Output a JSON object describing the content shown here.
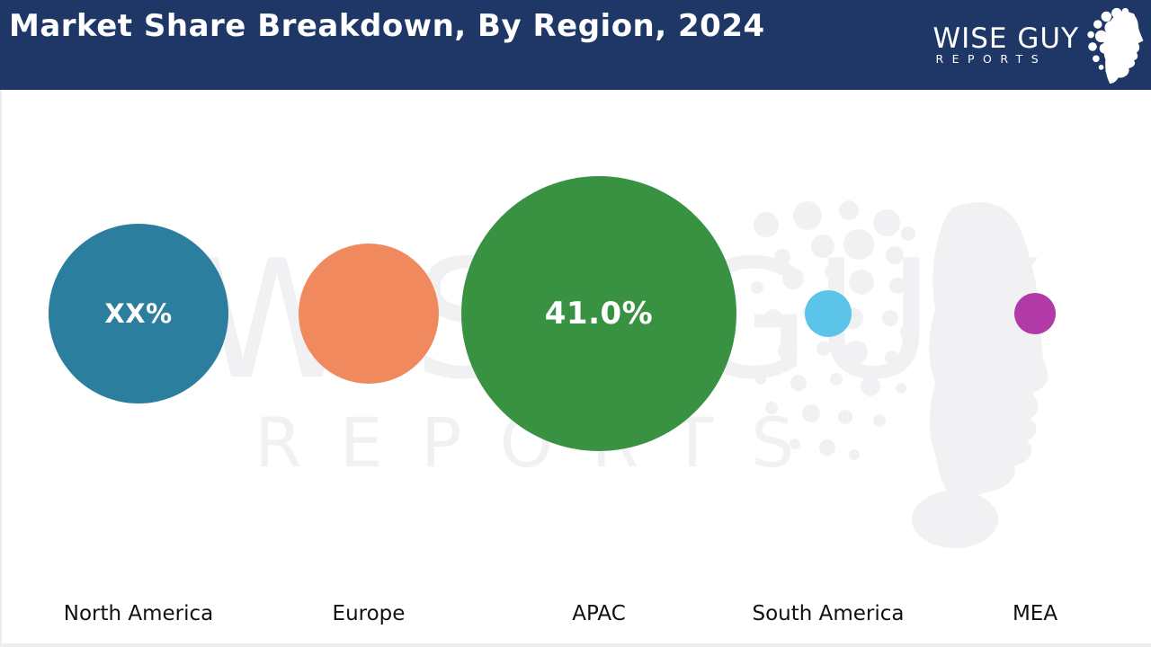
{
  "header": {
    "title": "Market Share Breakdown, By Region, 2024",
    "logo": {
      "line1": "WISE GUY",
      "line2": "REPORTS"
    }
  },
  "watermark": {
    "line1": "WISE GUY",
    "line2": "REPORTS"
  },
  "colors": {
    "header_bg": "#1f3766",
    "watermark": "#f1f1f4",
    "label_text": "#111111"
  },
  "chart_data": {
    "type": "bubble",
    "title": "Market Share Breakdown, By Region, 2024",
    "categories": [
      "North America",
      "Europe",
      "APAC",
      "South America",
      "MEA"
    ],
    "points": [
      {
        "category": "North America",
        "value_label": "XX%",
        "share_pct": null,
        "color": "#2b7e9e",
        "radius_px": 100
      },
      {
        "category": "Europe",
        "value_label": "",
        "share_pct": null,
        "color": "#f08a5e",
        "radius_px": 78
      },
      {
        "category": "APAC",
        "value_label": "41.0%",
        "share_pct": 41.0,
        "color": "#389242",
        "radius_px": 153
      },
      {
        "category": "South America",
        "value_label": "",
        "share_pct": null,
        "color": "#5bc4e8",
        "radius_px": 26
      },
      {
        "category": "MEA",
        "value_label": "",
        "share_pct": null,
        "color": "#b23aa7",
        "radius_px": 23
      }
    ],
    "legend": "none",
    "axes": "none"
  }
}
